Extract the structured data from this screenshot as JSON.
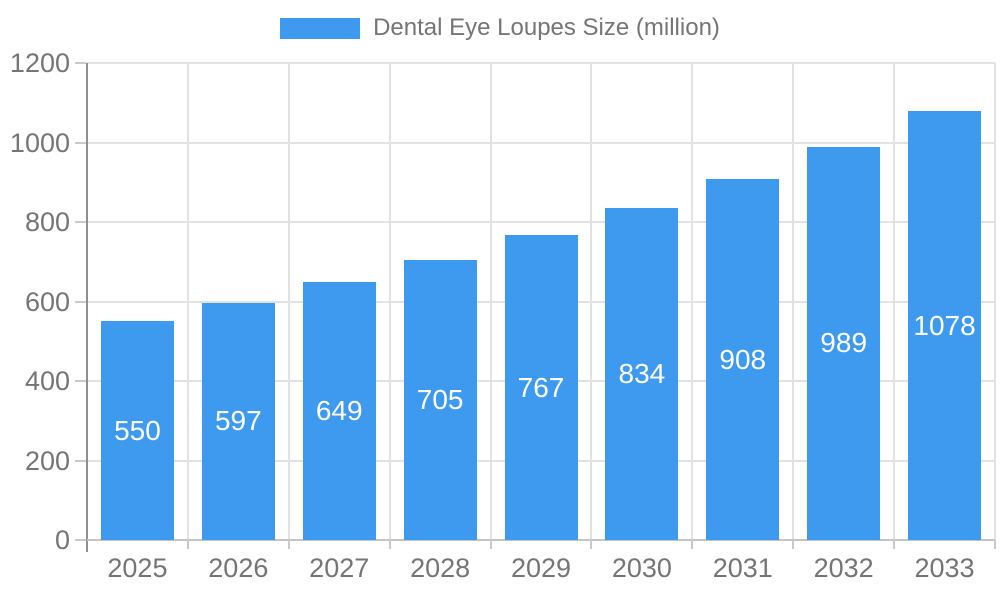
{
  "legend": {
    "label": "Dental Eye Loupes Size (million)"
  },
  "colors": {
    "bar": "#3D9AEF",
    "bar_label": "#ffffff",
    "legend_text": "#757575",
    "axis_label": "#757575",
    "grid": "#e2e2e2",
    "y_axis_line": "#8f8f8f",
    "x_axis_line": "#c4c4c4",
    "tick": "#c9c9c9",
    "background": "#ffffff"
  },
  "chart_data": {
    "type": "bar",
    "title": "Dental Eye Loupes Size (million)",
    "categories": [
      "2025",
      "2026",
      "2027",
      "2028",
      "2029",
      "2030",
      "2031",
      "2032",
      "2033"
    ],
    "values": [
      550,
      597,
      649,
      705,
      767,
      834,
      908,
      989,
      1078
    ],
    "xlabel": "",
    "ylabel": "",
    "ylim": [
      0,
      1200
    ],
    "yticks": [
      0,
      200,
      400,
      600,
      800,
      1000,
      1200
    ],
    "grid": true,
    "legend_position": "top",
    "bar_label_position": "center"
  }
}
